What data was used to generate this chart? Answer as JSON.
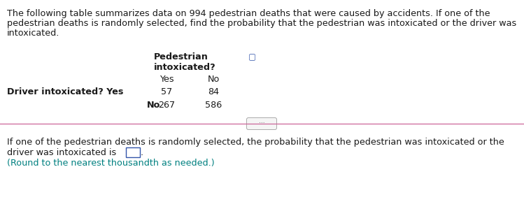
{
  "intro_line1": "The following table summarizes data on 994 pedestrian deaths that were caused by accidents. If one of the",
  "intro_line2": "pedestrian deaths is randomly selected, find the probability that the pedestrian was intoxicated or the driver was",
  "intro_line3": "intoxicated.",
  "col_header_line1": "Pedestrian",
  "col_header_line2": "intoxicated?",
  "col_yes": "Yes",
  "col_no": "No",
  "row1_label": "Driver intoxicated? Yes",
  "row2_label": "No",
  "row1_yes": "57",
  "row1_no": "84",
  "row2_yes": "267",
  "row2_no": "586",
  "divider_color": "#cc6699",
  "bottom_line1": "If one of the pedestrian deaths is randomly selected, the probability that the pedestrian was intoxicated or the",
  "bottom_line2a": "driver was intoxicated is",
  "bottom_line2b": ".",
  "bottom_line3": "(Round to the nearest thousandth as needed.)",
  "text_color": "#1a1a1a",
  "teal_color": "#008080",
  "blue_color": "#3355aa",
  "background_color": "#ffffff",
  "font_size": 9.2,
  "font_size_bold": 9.2
}
